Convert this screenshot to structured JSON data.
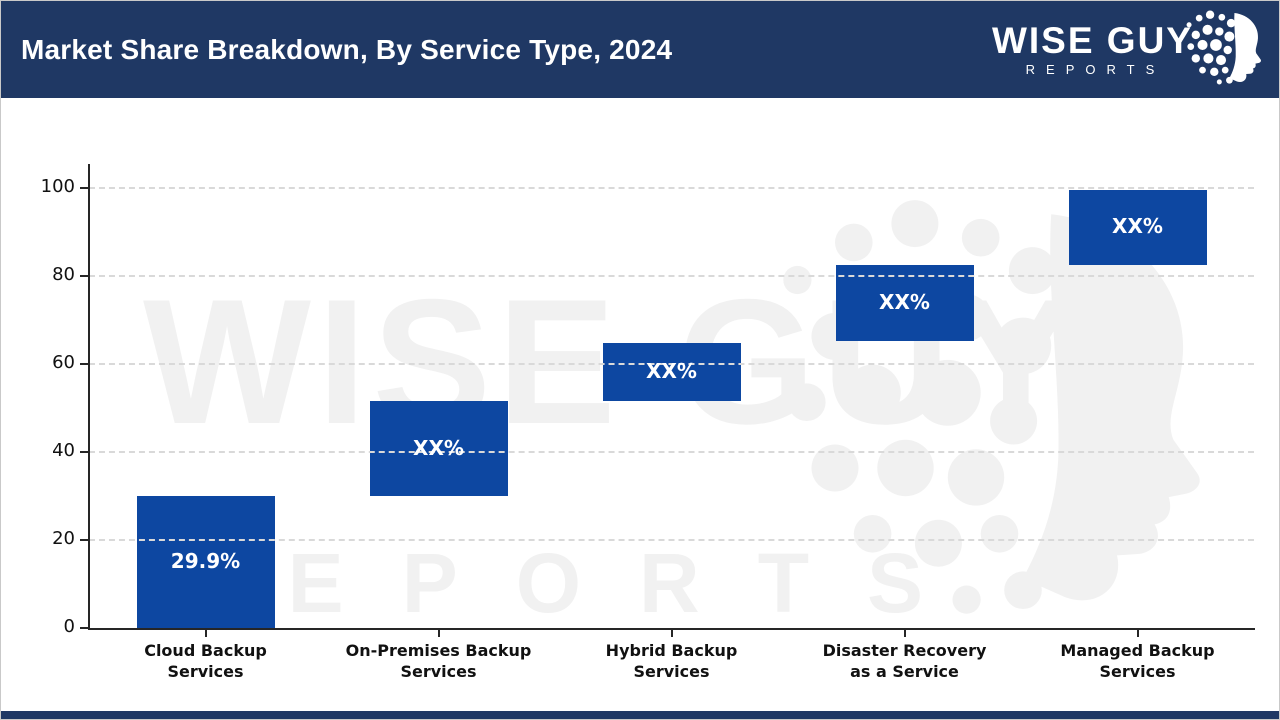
{
  "header": {
    "title": "Market Share Breakdown, By Service Type, 2024",
    "logo": {
      "line1": "WISE GUY",
      "line2": "REPORTS"
    }
  },
  "watermark": {
    "line1": "WISE GUY",
    "line2": "REPORTS"
  },
  "chart_data": {
    "type": "bar",
    "subtype": "floating-waterfall",
    "title": "Market Share Breakdown, By Service Type, 2024",
    "xlabel": "",
    "ylabel": "",
    "ylim": [
      0,
      105
    ],
    "yticks": [
      0,
      20,
      40,
      60,
      80,
      100
    ],
    "grid": "horizontal-dashed",
    "legend": "none",
    "bar_color": "#0d47a1",
    "label_color": "#ffffff",
    "categories": [
      "Cloud Backup\nServices",
      "On-Premises Backup\nServices",
      "Hybrid Backup\nServices",
      "Disaster Recovery\nas a Service",
      "Managed Backup\nServices"
    ],
    "series": [
      {
        "name": "Market Share",
        "segments": [
          {
            "category": "Cloud Backup Services",
            "start": 0,
            "end": 29.9,
            "label": "29.9%"
          },
          {
            "category": "On-Premises Backup Services",
            "start": 30,
            "end": 51.5,
            "label": "XX%"
          },
          {
            "category": "Hybrid Backup Services",
            "start": 51.5,
            "end": 64.8,
            "label": "XX%"
          },
          {
            "category": "Disaster Recovery as a Service",
            "start": 65.2,
            "end": 82.5,
            "label": "XX%"
          },
          {
            "category": "Managed Backup Services",
            "start": 82.6,
            "end": 99.5,
            "label": "XX%"
          }
        ]
      }
    ]
  },
  "colors": {
    "header_bg": "#1f3864",
    "bar": "#0d47a1",
    "grid": "#d9d9d9",
    "axis": "#262626",
    "watermark": "#f1f1f1"
  }
}
